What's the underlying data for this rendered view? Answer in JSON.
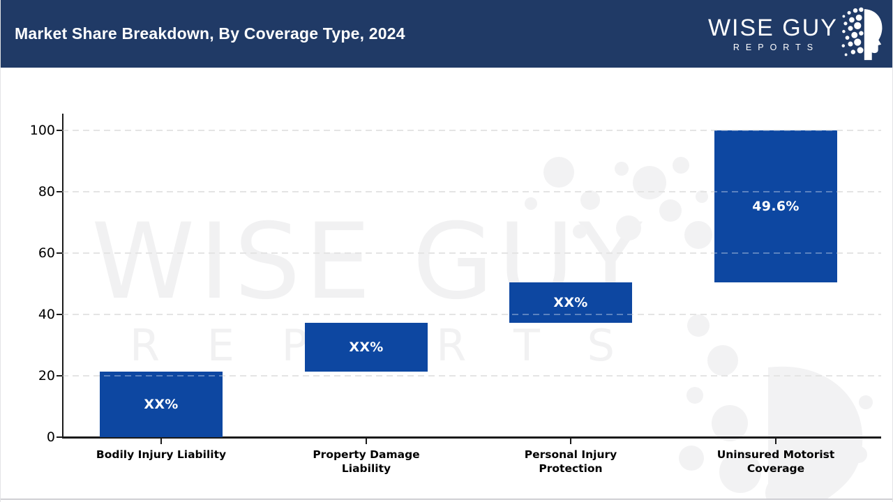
{
  "header": {
    "title": "Market Share Breakdown, By Coverage Type, 2024",
    "logo": {
      "line1": "WISE GUY",
      "line2": "REPORTS"
    }
  },
  "watermark": {
    "line1": "WISE GUY",
    "line2": "R E P O R T S"
  },
  "colors": {
    "header_bg": "#203a66",
    "bar": "#0d47a1",
    "bar_label": "#ffffff",
    "grid": "#d8d8d8",
    "axis": "#1a1a1a",
    "watermark": "#f1f1f2"
  },
  "chart_data": {
    "type": "bar",
    "subtype": "waterfall",
    "title": "Market Share Breakdown, By Coverage Type, 2024",
    "xlabel": "",
    "ylabel": "",
    "ylim": [
      0,
      100
    ],
    "yticks": [
      0,
      20,
      40,
      60,
      80,
      100
    ],
    "grid": "dashed-horizontal",
    "legend": "none",
    "categories": [
      "Bodily Injury Liability",
      "Property Damage Liability",
      "Personal Injury Protection",
      "Uninsured Motorist Coverage"
    ],
    "segments": [
      {
        "category": "Bodily Injury Liability",
        "start": 0,
        "end": 21.3,
        "value": 21.3,
        "label": "XX%"
      },
      {
        "category": "Property Damage Liability",
        "start": 21.3,
        "end": 37.3,
        "value": 16.0,
        "label": "XX%"
      },
      {
        "category": "Personal Injury Protection",
        "start": 37.3,
        "end": 50.4,
        "value": 13.1,
        "label": "XX%"
      },
      {
        "category": "Uninsured Motorist Coverage",
        "start": 50.4,
        "end": 100,
        "value": 49.6,
        "label": "49.6%"
      }
    ]
  }
}
